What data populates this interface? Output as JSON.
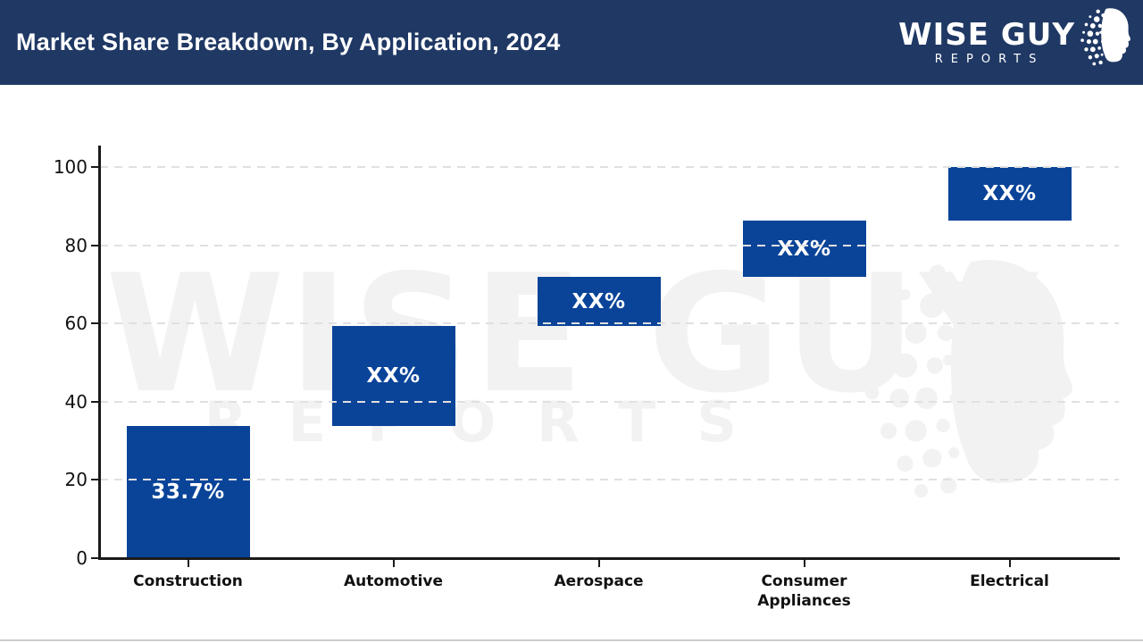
{
  "header": {
    "title": "Market Share Breakdown, By Application, 2024",
    "logo": {
      "line1": "WISE GUY",
      "line2": "REPORTS"
    }
  },
  "watermark": {
    "line1": "WISE GUY",
    "line2": "REPORTS"
  },
  "chart_data": {
    "type": "bar",
    "subtype": "waterfall",
    "title": "Market Share Breakdown, By Application, 2024",
    "categories": [
      "Construction",
      "Automotive",
      "Aerospace",
      "Consumer Appliances",
      "Electrical"
    ],
    "segments": [
      {
        "category": "Construction",
        "start": 0,
        "end": 33.7,
        "label": "33.7%"
      },
      {
        "category": "Automotive",
        "start": 33.7,
        "end": 59.3,
        "label": "XX%"
      },
      {
        "category": "Aerospace",
        "start": 59.3,
        "end": 71.9,
        "label": "XX%"
      },
      {
        "category": "Consumer Appliances",
        "start": 71.9,
        "end": 86.2,
        "label": "XX%"
      },
      {
        "category": "Electrical",
        "start": 86.2,
        "end": 100,
        "label": "XX%"
      }
    ],
    "yticks": [
      0,
      20,
      40,
      60,
      80,
      100
    ],
    "ylim": [
      0,
      106
    ],
    "xlabel": "",
    "ylabel": "",
    "legend": "none",
    "grid": {
      "horizontal": true,
      "style": "dashed",
      "color": "#e0e0e0"
    },
    "colors": {
      "bar": "#0a4499",
      "bar_label": "#ffffff",
      "axis": "#1a1a1a",
      "tick_label": "#111111"
    }
  },
  "colors": {
    "header_bg": "#1f3864",
    "page_bg": "#ffffff",
    "watermark": "#f2f2f2",
    "bottom_rule": "#cbcbcb"
  }
}
